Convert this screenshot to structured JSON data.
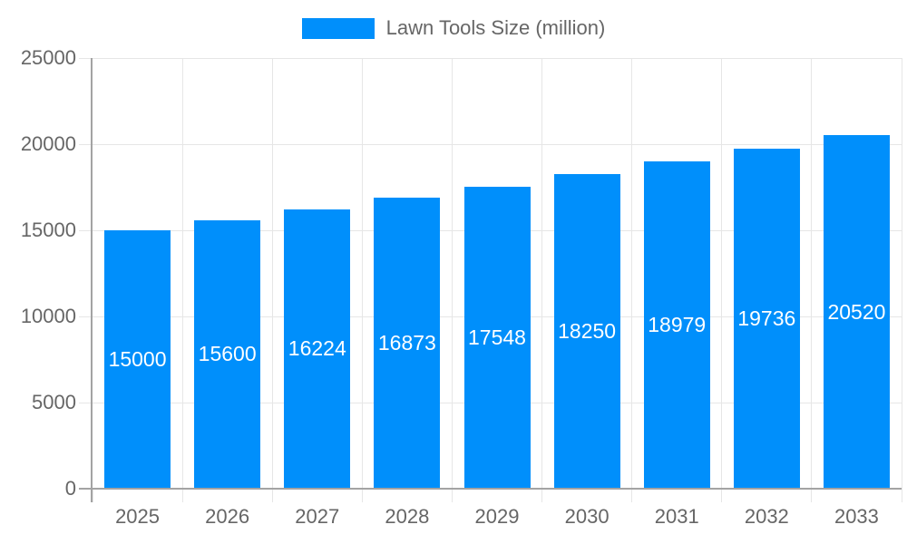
{
  "chart_data": {
    "type": "bar",
    "title": "",
    "legend": "Lawn Tools Size (million)",
    "legend_position": "top-center",
    "categories": [
      "2025",
      "2026",
      "2027",
      "2028",
      "2029",
      "2030",
      "2031",
      "2032",
      "2033"
    ],
    "series": [
      {
        "name": "Lawn Tools Size (million)",
        "values": [
          15000,
          15600,
          16224,
          16873,
          17548,
          18250,
          18979,
          19736,
          20520
        ]
      }
    ],
    "data_labels": [
      "15000",
      "15600",
      "16224",
      "16873",
      "17548",
      "18250",
      "18979",
      "19736",
      "20520"
    ],
    "data_label_position": "inside-center",
    "xlabel": "",
    "ylabel": "",
    "ylim": [
      0,
      25000
    ],
    "yticks": [
      0,
      5000,
      10000,
      15000,
      20000,
      25000
    ],
    "grid": true,
    "colors": {
      "bar": "#008FFB",
      "grid": "#e6e6e6",
      "axis": "#a3a3a3",
      "tick_text": "#666666",
      "data_label_text": "#ffffff",
      "background": "#ffffff"
    }
  }
}
